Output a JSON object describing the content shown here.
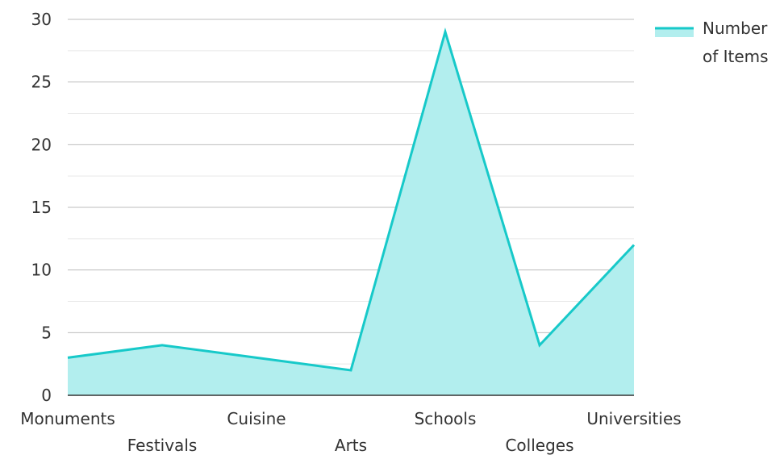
{
  "chart_data": {
    "type": "area",
    "title": "",
    "xlabel": "",
    "ylabel": "",
    "categories": [
      "Monuments",
      "Festivals",
      "Cuisine",
      "Arts",
      "Schools",
      "Colleges",
      "Universities"
    ],
    "series": [
      {
        "name": "Number of Items",
        "values": [
          3,
          4,
          3,
          2,
          29,
          4,
          12
        ]
      }
    ],
    "ylim": [
      0,
      30
    ],
    "yticks": [
      0,
      5,
      10,
      15,
      20,
      25,
      30
    ],
    "grid": true,
    "legend": {
      "position": "top-right",
      "lines": [
        "Number",
        "of Items"
      ]
    },
    "colors": {
      "line": "#17c9c9",
      "fill": "#b2eeee",
      "grid_major": "#bdbdbd",
      "grid_minor": "#e6e6e6",
      "axis": "#333333"
    }
  }
}
